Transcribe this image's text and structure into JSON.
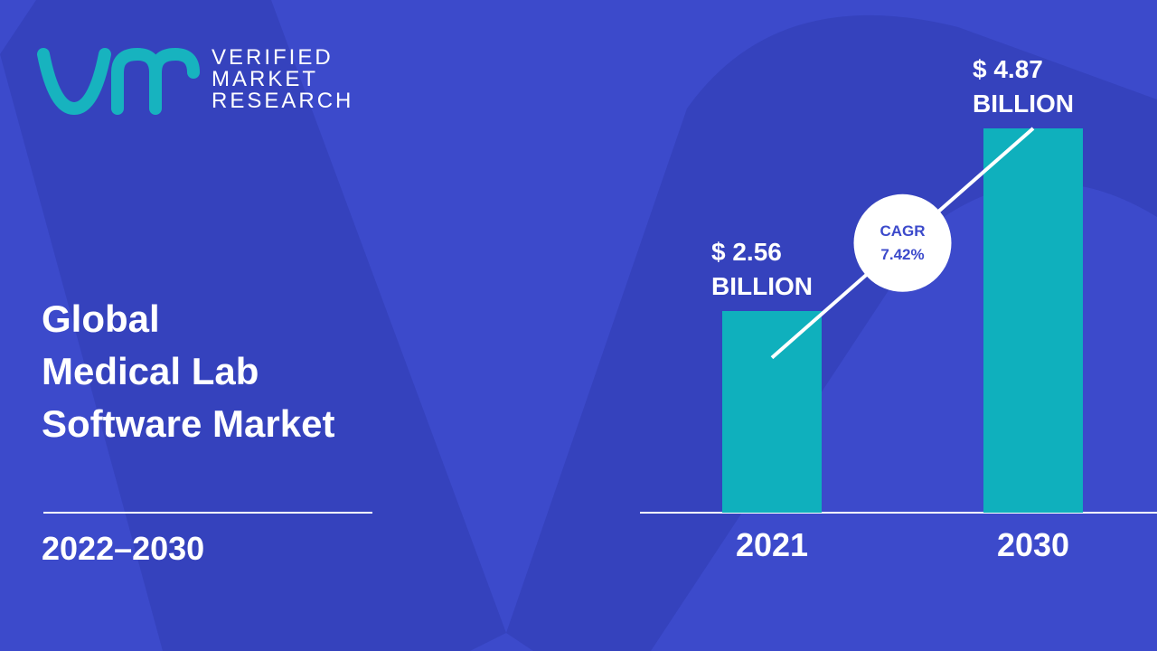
{
  "logo": {
    "lines": [
      "VERIFIED",
      "MARKET",
      "RESEARCH"
    ]
  },
  "chart_data": {
    "type": "bar",
    "title": [
      "Global",
      "Medical Lab",
      "Software Market"
    ],
    "subtitle": "2022–2030",
    "categories": [
      "2021",
      "2030"
    ],
    "values": [
      2.56,
      4.87
    ],
    "value_labels": [
      "$ 2.56 BILLION",
      "$ 4.87 BILLION"
    ],
    "color": "#0fb0bd",
    "annotation": [
      "CAGR",
      "7.42%"
    ]
  }
}
